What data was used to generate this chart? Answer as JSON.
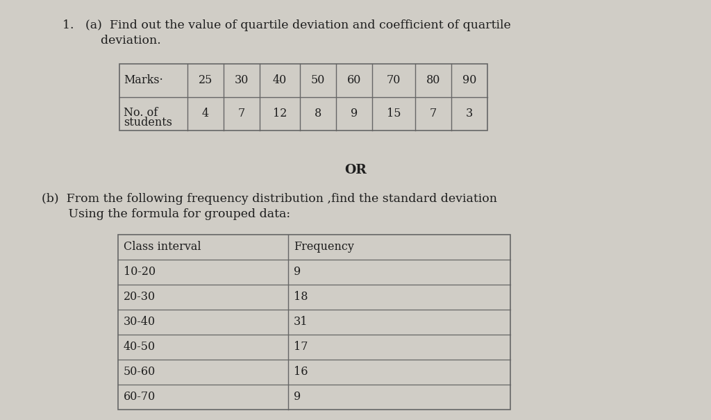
{
  "background_color": "#d0cdc6",
  "paper_color": "#d8d5ce",
  "title_line1": "1.   (a)  Find out the value of quartile deviation and coefficient of quartile",
  "title_line2": "          deviation.",
  "table1_col_headers": [
    "Marks·",
    "25",
    "30",
    "40",
    "50",
    "60",
    "70",
    "80",
    "90"
  ],
  "table1_row2_header_line1": "No. of",
  "table1_row2_header_line2": "students",
  "table1_values": [
    "4",
    "7",
    "12",
    "8",
    "9",
    "15",
    "7",
    "3"
  ],
  "or_text": "OR",
  "part_b_line1": "(b)  From the following frequency distribution ,find the standard deviation",
  "part_b_line2": "       Using the formula for grouped data:",
  "table2_headers": [
    "Class interval",
    "Frequency"
  ],
  "table2_rows": [
    [
      "10-20",
      "9"
    ],
    [
      "20-30",
      "18"
    ],
    [
      "30-40",
      "31"
    ],
    [
      "40-50",
      "17"
    ],
    [
      "50-60",
      "16"
    ],
    [
      "60-70",
      "9"
    ]
  ],
  "text_color": "#1e1e1e",
  "table_line_color": "#666666",
  "font_size_main": 12.5,
  "font_size_table": 11.5,
  "font_size_or": 13.5
}
